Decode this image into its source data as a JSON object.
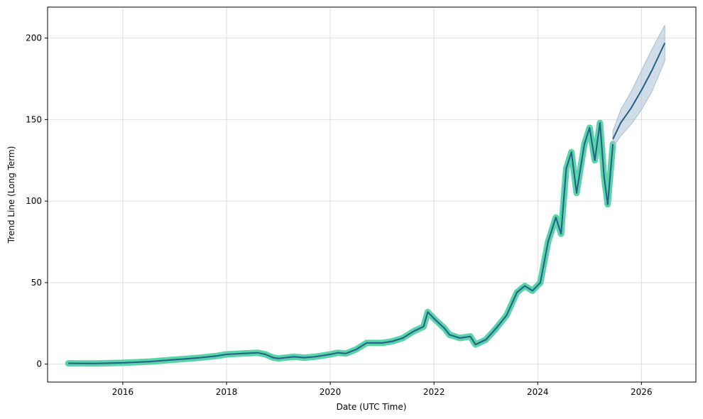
{
  "chart_data": {
    "type": "line",
    "title": "",
    "xlabel": "Date (UTC Time)",
    "ylabel": "Trend Line (Long Term)",
    "xlim": [
      2014.55,
      2027.05
    ],
    "ylim": [
      -11,
      219
    ],
    "grid": true,
    "legend": "none",
    "x_ticks": [
      2016,
      2018,
      2020,
      2022,
      2024,
      2026
    ],
    "x_tick_labels": [
      "2016",
      "2018",
      "2020",
      "2022",
      "2024",
      "2026"
    ],
    "y_ticks": [
      0,
      50,
      100,
      150,
      200
    ],
    "y_tick_labels": [
      "0",
      "50",
      "100",
      "150",
      "200"
    ],
    "colors": {
      "historical_band": "#4fd1a5",
      "trend_line": "#255f85",
      "forecast_band": "#a9bfd3"
    },
    "series": [
      {
        "role": "historical",
        "x": [
          2014.95,
          2015.5,
          2016.0,
          2016.5,
          2016.9,
          2017.1,
          2017.5,
          2017.8,
          2018.0,
          2018.3,
          2018.6,
          2018.75,
          2018.9,
          2019.0,
          2019.3,
          2019.5,
          2019.7,
          2020.0,
          2020.15,
          2020.3,
          2020.5,
          2020.7,
          2021.0,
          2021.2,
          2021.4,
          2021.6,
          2021.8,
          2021.88,
          2022.0,
          2022.2,
          2022.3,
          2022.5,
          2022.7,
          2022.8,
          2023.0,
          2023.2,
          2023.4,
          2023.6,
          2023.75,
          2023.9,
          2024.05,
          2024.2,
          2024.35,
          2024.45,
          2024.55,
          2024.65,
          2024.75,
          2024.9,
          2025.0,
          2025.1,
          2025.2,
          2025.28,
          2025.35,
          2025.45
        ],
        "y": [
          0.5,
          0.4,
          0.8,
          1.5,
          2.5,
          3.0,
          4.0,
          5.0,
          6.0,
          6.5,
          7.0,
          6.0,
          4.0,
          3.5,
          4.5,
          4.0,
          4.5,
          6.0,
          7.0,
          6.5,
          9.0,
          13.0,
          13.0,
          14.0,
          16.0,
          20.0,
          23.0,
          32.0,
          28.0,
          22.0,
          18.0,
          16.0,
          17.0,
          12.0,
          15.0,
          22.0,
          30.0,
          44.0,
          48.0,
          45.0,
          50.0,
          75.0,
          90.0,
          80.0,
          120.0,
          130.0,
          105.0,
          135.0,
          145.0,
          125.0,
          148.0,
          115.0,
          98.0,
          135.0
        ]
      },
      {
        "role": "forecast",
        "x": [
          2025.45,
          2025.6,
          2025.8,
          2026.0,
          2026.2,
          2026.45
        ],
        "y": [
          138.0,
          148.0,
          157.0,
          168.0,
          180.0,
          197.0
        ],
        "lower": [
          133.0,
          140.0,
          147.0,
          156.0,
          167.0,
          186.0
        ],
        "upper": [
          143.0,
          156.0,
          167.0,
          180.0,
          193.0,
          208.0
        ]
      }
    ]
  }
}
